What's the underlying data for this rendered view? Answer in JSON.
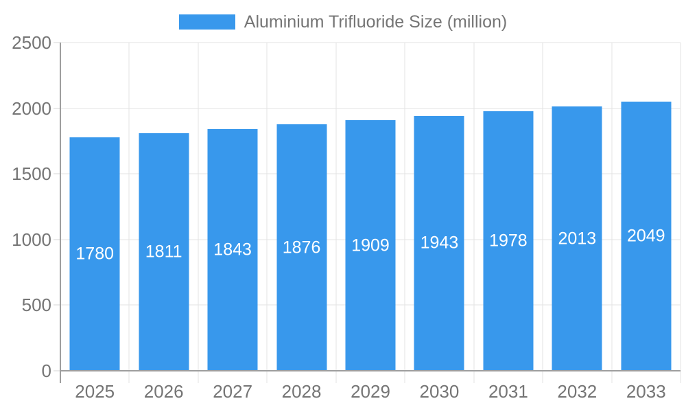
{
  "chart_data": {
    "type": "bar",
    "title": "Aluminium Trifluoride Size (million)",
    "legend": "Aluminium Trifluoride Size (million)",
    "legend_position": "top-center",
    "categories": [
      "2025",
      "2026",
      "2027",
      "2028",
      "2029",
      "2030",
      "2031",
      "2032",
      "2033"
    ],
    "values": [
      1780,
      1811,
      1843,
      1876,
      1909,
      1943,
      1978,
      2013,
      2049
    ],
    "xlabel": "",
    "ylabel": "",
    "ylim": [
      0,
      2500
    ],
    "yticks": [
      0,
      500,
      1000,
      1500,
      2000,
      2500
    ],
    "grid": true,
    "bar_labels_inside": true,
    "colors": {
      "bar": "#3898EC",
      "grid": "#E3E3E3",
      "tick": "#D6D6D6",
      "axis": "#9E9E9E",
      "text": "#757575",
      "value_label": "#FFFFFF",
      "background": "#FFFFFF"
    }
  }
}
